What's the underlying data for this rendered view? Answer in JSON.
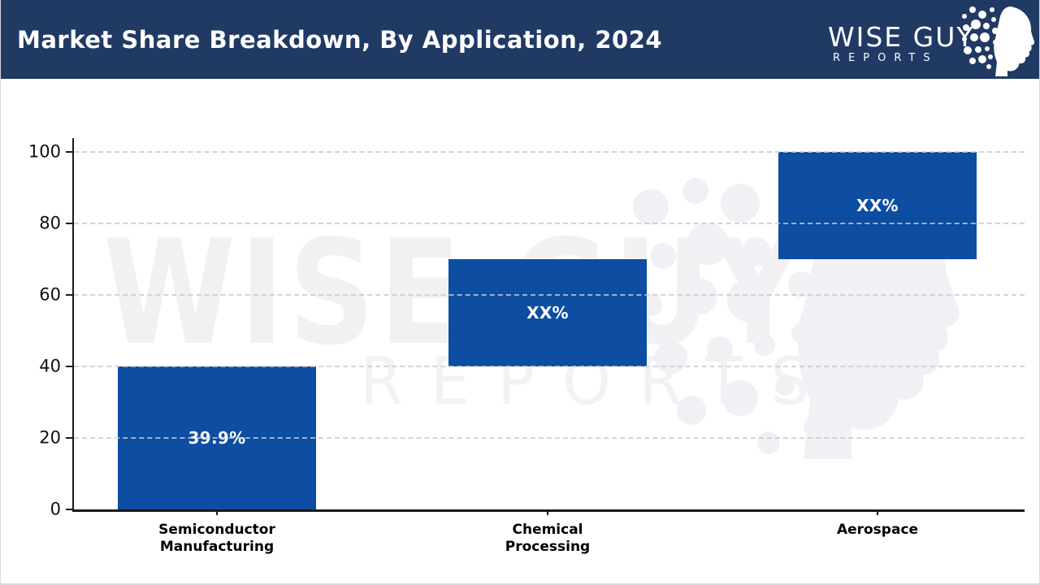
{
  "page": {
    "background": "#ffffff",
    "frame_border_color": "#d9d9d9"
  },
  "header": {
    "bg_color": "#213a64",
    "title": "Market Share Breakdown, By Application, 2024",
    "logo": {
      "wordmark": "WISE GUY",
      "subtext": "REPORTS"
    }
  },
  "watermark": {
    "wordmark": "WISE GUY",
    "subtext": "REPORTS"
  },
  "chart_data": {
    "type": "bar",
    "variant": "floating-waterfall",
    "title": "Market Share Breakdown, By Application, 2024",
    "categories": [
      "Semiconductor Manufacturing",
      "Chemical Processing",
      "Aerospace"
    ],
    "category_lines": [
      [
        "Semiconductor",
        "Manufacturing"
      ],
      [
        "Chemical",
        "Processing"
      ],
      [
        "Aerospace"
      ]
    ],
    "series": [
      {
        "name": "Semiconductor Manufacturing",
        "start": 0,
        "end": 39.9,
        "value": 39.9,
        "label": "39.9%"
      },
      {
        "name": "Chemical Processing",
        "start": 39.9,
        "end": 69.9,
        "value": 30.0,
        "label": "XX%"
      },
      {
        "name": "Aerospace",
        "start": 69.9,
        "end": 99.9,
        "value": 30.0,
        "label": "XX%"
      }
    ],
    "ylim": [
      0,
      104
    ],
    "yticks": [
      0,
      20,
      40,
      60,
      80,
      100
    ],
    "grid": {
      "horizontal": true,
      "style": "dashed",
      "color": "#d9d9d9"
    },
    "bar_color": "#0d4da2",
    "bar_label_color": "#ffffff",
    "axis_color": "#1a1a1a",
    "legend": "none"
  }
}
